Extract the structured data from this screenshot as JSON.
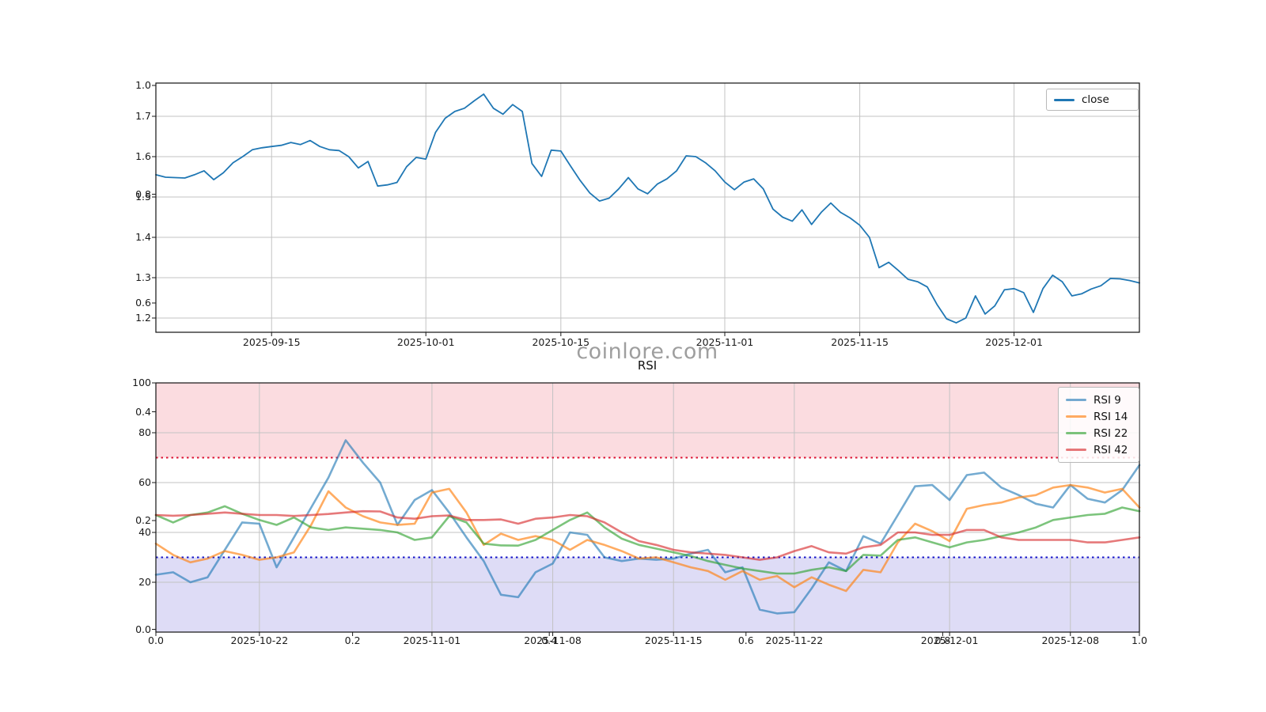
{
  "watermark": "coinlore.com",
  "top_chart": {
    "legend": [
      {
        "label": "close",
        "color": "#1f77b4"
      }
    ],
    "x_tick_labels": [
      "2025-09-15",
      "2025-10-01",
      "2025-10-15",
      "2025-11-01",
      "2025-11-15",
      "2025-12-01"
    ],
    "y_tick_labels": [
      "1.7",
      "1.6",
      "1.5",
      "1.4",
      "1.3",
      "1.2"
    ]
  },
  "rsi_chart": {
    "title": "RSI",
    "legend": [
      {
        "label": "RSI 9",
        "color": "rgba(31,119,180,0.62)"
      },
      {
        "label": "RSI 14",
        "color": "rgba(255,127,14,0.65)"
      },
      {
        "label": "RSI 22",
        "color": "rgba(44,160,44,0.62)"
      },
      {
        "label": "RSI 42",
        "color": "rgba(214,39,40,0.62)"
      }
    ],
    "x_tick_labels": [
      "2025-10-22",
      "2025-11-01",
      "2025-11-08",
      "2025-11-15",
      "2025-11-22",
      "2025-12-01",
      "2025-12-08"
    ],
    "y_tick_labels": [
      "100",
      "80",
      "60",
      "40",
      "20"
    ],
    "overbought_level": 70,
    "oversold_level": 30,
    "band_colors": {
      "overbought": "#fbdce0",
      "oversold": "#dedcf6"
    },
    "hline_colors": {
      "overbought": "#dc1433",
      "oversold": "#1414c8"
    }
  },
  "overlay_axis": {
    "x_tick_labels": [
      "0.0",
      "0.2",
      "0.4",
      "0.6",
      "0.8",
      "1.0"
    ],
    "y_tick_labels": [
      "1.0",
      "0.8",
      "0.6",
      "0.4",
      "0.2",
      "0.0"
    ]
  },
  "chart_data": [
    {
      "type": "line",
      "title": "",
      "xlabel": "",
      "ylabel": "",
      "x_start_date": "2025-09-03",
      "days_total": 102,
      "x_tick_labels": [
        "2025-09-15",
        "2025-10-01",
        "2025-10-15",
        "2025-11-01",
        "2025-11-15",
        "2025-12-01"
      ],
      "x_tick_day_offsets": [
        12,
        28,
        42,
        59,
        73,
        89
      ],
      "y_ticks": [
        1.7,
        1.6,
        1.5,
        1.4,
        1.3,
        1.2
      ],
      "ylim": [
        1.165,
        1.782
      ],
      "grid": true,
      "legend_position": "upper right",
      "series": [
        {
          "name": "close",
          "color": "#1f77b4",
          "values": [
            1.555,
            1.549,
            1.548,
            1.547,
            1.555,
            1.565,
            1.543,
            1.56,
            1.585,
            1.6,
            1.617,
            1.622,
            1.625,
            1.628,
            1.635,
            1.63,
            1.64,
            1.625,
            1.617,
            1.615,
            1.6,
            1.572,
            1.588,
            1.527,
            1.53,
            1.536,
            1.575,
            1.598,
            1.594,
            1.66,
            1.695,
            1.712,
            1.72,
            1.738,
            1.755,
            1.72,
            1.705,
            1.729,
            1.712,
            1.583,
            1.551,
            1.616,
            1.614,
            1.577,
            1.541,
            1.51,
            1.49,
            1.497,
            1.52,
            1.548,
            1.52,
            1.508,
            1.532,
            1.545,
            1.565,
            1.602,
            1.6,
            1.585,
            1.565,
            1.537,
            1.518,
            1.537,
            1.545,
            1.52,
            1.47,
            1.45,
            1.44,
            1.468,
            1.432,
            1.462,
            1.485,
            1.462,
            1.448,
            1.43,
            1.4,
            1.325,
            1.338,
            1.318,
            1.296,
            1.29,
            1.277,
            1.234,
            1.198,
            1.188,
            1.2,
            1.255,
            1.21,
            1.23,
            1.27,
            1.273,
            1.263,
            1.214,
            1.273,
            1.306,
            1.29,
            1.255,
            1.26,
            1.272,
            1.28,
            1.298,
            1.297,
            1.293,
            1.287
          ]
        }
      ]
    },
    {
      "type": "line",
      "title": "RSI",
      "xlabel": "",
      "ylabel": "",
      "x_start_date": "2025-10-16",
      "days_total": 57,
      "x_tick_labels": [
        "2025-10-22",
        "2025-11-01",
        "2025-11-08",
        "2025-11-15",
        "2025-11-22",
        "2025-12-01",
        "2025-12-08"
      ],
      "x_tick_day_offsets": [
        6,
        16,
        23,
        30,
        37,
        46,
        53
      ],
      "y_ticks": [
        100,
        80,
        60,
        40,
        20
      ],
      "ylim": [
        0,
        100
      ],
      "grid": true,
      "legend_position": "upper right",
      "bands": [
        {
          "from": 70,
          "to": 100,
          "color": "#fbdce0"
        },
        {
          "from": 0,
          "to": 30,
          "color": "#dedcf6"
        }
      ],
      "hlines": [
        {
          "value": 70,
          "color": "#dc1433",
          "style": "dotted"
        },
        {
          "value": 30,
          "color": "#1414c8",
          "style": "dotted"
        }
      ],
      "series": [
        {
          "name": "RSI 9",
          "color": "rgba(31,119,180,0.62)",
          "values": [
            23,
            24,
            20,
            22,
            33,
            44,
            43.5,
            26,
            38,
            50,
            62,
            77,
            68,
            60,
            43,
            53,
            57,
            48,
            38,
            28.5,
            15,
            14,
            24,
            27.5,
            40,
            39,
            30,
            28.5,
            29.5,
            29,
            29.5,
            31.5,
            33,
            24,
            26,
            9,
            7.5,
            8,
            17.5,
            28,
            24.5,
            38.5,
            35.5,
            47,
            58.5,
            59,
            53,
            63,
            64,
            58,
            55,
            51.5,
            50,
            59,
            53.5,
            52,
            57,
            67
          ]
        },
        {
          "name": "RSI 14",
          "color": "rgba(255,127,14,0.65)",
          "values": [
            35.5,
            31,
            28,
            29.5,
            32.5,
            31,
            29,
            30,
            32,
            43,
            56.5,
            50,
            46.5,
            44,
            43,
            43.5,
            56,
            57.5,
            48,
            35,
            39.5,
            37,
            38.5,
            37,
            33,
            37,
            35,
            32.5,
            29.5,
            30,
            28,
            26,
            24.5,
            21,
            24.5,
            21,
            22.5,
            18,
            22,
            19,
            16.5,
            25,
            24,
            36,
            43.5,
            40.5,
            36.5,
            49.5,
            51,
            52,
            54,
            55,
            58,
            59,
            58,
            56,
            57.5,
            50
          ]
        },
        {
          "name": "RSI 22",
          "color": "rgba(44,160,44,0.62)",
          "values": [
            47,
            44,
            47,
            48,
            50.5,
            47.5,
            45,
            43,
            46,
            42,
            41,
            42,
            41.5,
            41,
            40,
            37,
            38,
            46.5,
            44,
            35.5,
            34.8,
            34.7,
            37,
            41,
            45,
            48,
            42,
            37.5,
            35,
            33.5,
            32,
            30.5,
            28.5,
            27,
            25.5,
            24.5,
            23.5,
            23.5,
            25,
            26,
            24.5,
            31,
            30.7,
            37,
            38,
            36,
            34,
            36,
            37,
            38.5,
            40,
            42,
            45,
            46,
            47,
            47.5,
            50,
            48.5
          ]
        },
        {
          "name": "RSI 42",
          "color": "rgba(214,39,40,0.62)",
          "values": [
            47,
            46.7,
            47,
            47.5,
            48,
            47.5,
            47,
            47,
            46.6,
            47,
            47.4,
            48,
            48.5,
            48.4,
            46,
            45.5,
            46.5,
            46.8,
            45,
            45,
            45.2,
            43.5,
            45.5,
            46,
            47,
            46.5,
            44,
            40,
            36.5,
            35,
            33,
            32,
            31.5,
            31,
            30,
            29,
            30,
            32.5,
            34.5,
            32,
            31.5,
            34,
            35,
            40,
            40,
            39,
            39,
            41,
            41,
            38,
            37,
            37,
            37,
            37,
            36,
            36,
            37,
            38
          ]
        }
      ]
    }
  ]
}
